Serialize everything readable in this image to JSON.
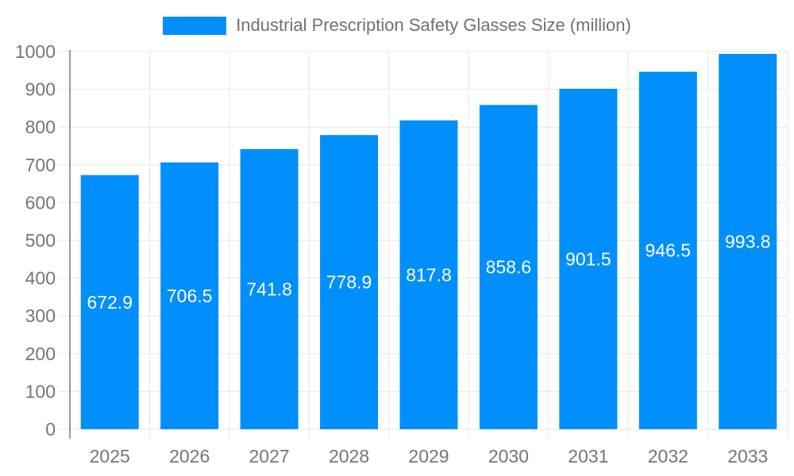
{
  "chart_data": {
    "type": "bar",
    "title": "Industrial Prescription Safety Glasses Size (million)",
    "categories": [
      "2025",
      "2026",
      "2027",
      "2028",
      "2029",
      "2030",
      "2031",
      "2032",
      "2033"
    ],
    "values": [
      672.9,
      706.5,
      741.8,
      778.9,
      817.8,
      858.6,
      901.5,
      946.5,
      993.8
    ],
    "xlabel": "",
    "ylabel": "",
    "ylim": [
      0,
      1000
    ],
    "yticks": [
      0,
      100,
      200,
      300,
      400,
      500,
      600,
      700,
      800,
      900,
      1000
    ],
    "grid": true,
    "legend_position": "top",
    "bar_value_labels_visible": true,
    "colors": {
      "bar": "#008FFB",
      "grid": "#e6e6e6",
      "axis": "#7a7a7a",
      "tick_label": "#757575",
      "legend_text": "#707070",
      "bar_label": "#ffffff",
      "background": "#ffffff"
    }
  }
}
